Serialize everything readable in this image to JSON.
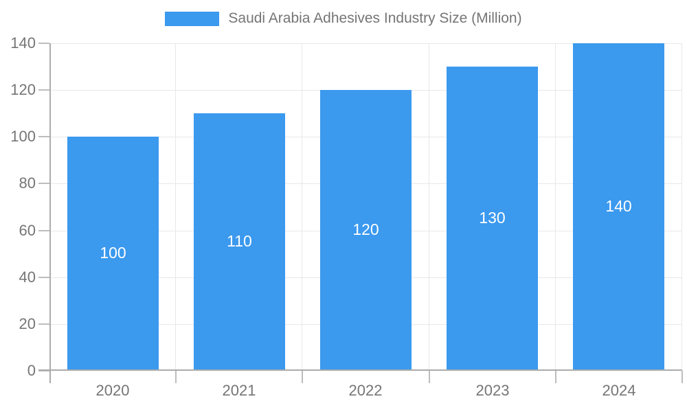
{
  "chart_data": {
    "type": "bar",
    "title": "Saudi Arabia Adhesives Industry Size (Million)",
    "categories": [
      "2020",
      "2021",
      "2022",
      "2023",
      "2024"
    ],
    "values": [
      100,
      110,
      120,
      130,
      140
    ],
    "series": [
      {
        "name": "Saudi Arabia Adhesives Industry Size (Million)",
        "values": [
          100,
          110,
          120,
          130,
          140
        ]
      }
    ],
    "xlabel": "",
    "ylabel": "",
    "ylim": [
      0,
      140
    ],
    "yticks": [
      0,
      20,
      40,
      60,
      80,
      100,
      120,
      140
    ],
    "grid": true,
    "legend_position": "top",
    "bar_labels_visible": true,
    "colors": {
      "bar": "#3B99EE",
      "bar_label": "#FFFFFF",
      "text": "#757575",
      "axis": "#ABABAB",
      "grid": "#E8E8E8",
      "tick": "#BDBDBD"
    }
  }
}
